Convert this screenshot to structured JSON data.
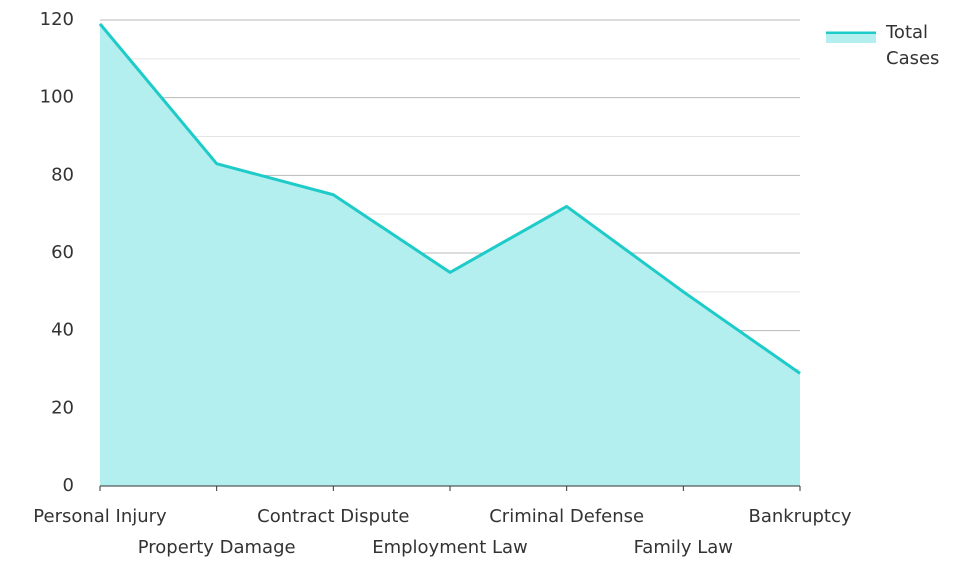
{
  "chart_data": {
    "type": "area",
    "categories": [
      "Personal Injury",
      "Property Damage",
      "Contract Dispute",
      "Employment Law",
      "Criminal Defense",
      "Family Law",
      "Bankruptcy"
    ],
    "series": [
      {
        "name": "Total Cases",
        "color": "#1ecbc8",
        "fill": "#b2efee",
        "values": [
          119,
          83,
          75,
          55,
          72,
          50,
          29
        ]
      }
    ],
    "ylim": [
      0,
      120
    ],
    "yticks": [
      0,
      20,
      40,
      60,
      80,
      100,
      120
    ],
    "minor_yticks": [
      10,
      30,
      50,
      70,
      90,
      110
    ],
    "grid": true,
    "legend": "top-right"
  }
}
